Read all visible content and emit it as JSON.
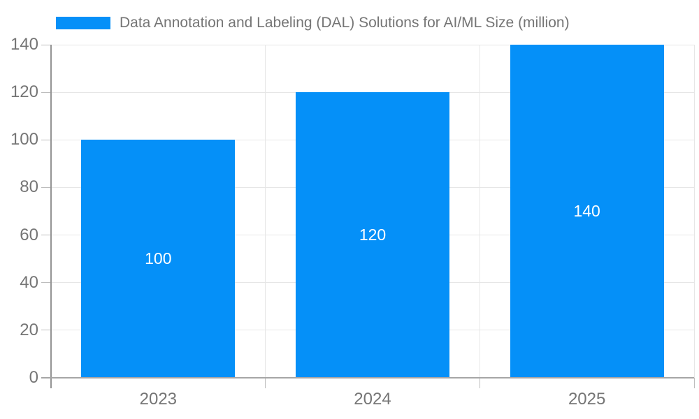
{
  "legend": {
    "label": "Data Annotation and Labeling (DAL) Solutions for AI/ML Size (million)"
  },
  "chart_data": {
    "type": "bar",
    "title": "",
    "categories": [
      "2023",
      "2024",
      "2025"
    ],
    "series": [
      {
        "name": "Data Annotation and Labeling (DAL) Solutions for AI/ML Size (million)",
        "values": [
          100,
          120,
          140
        ]
      }
    ],
    "bar_value_labels": [
      "100",
      "120",
      "140"
    ],
    "xlabel": "",
    "ylabel": "",
    "ylim": [
      0,
      140
    ],
    "yticks": [
      0,
      20,
      40,
      60,
      80,
      100,
      120,
      140
    ],
    "grid": true,
    "legend_position": "top-left"
  },
  "colors": {
    "bar": "#0590f8",
    "bar_label_text": "#ffffff",
    "axis_text": "#757575",
    "legend_text": "#757575",
    "gridline": "#e6e6e6",
    "axis_line": "#a6a6a6",
    "y_axis_line": "#949494",
    "tick": "#bdbdbd",
    "background": "#ffffff"
  }
}
